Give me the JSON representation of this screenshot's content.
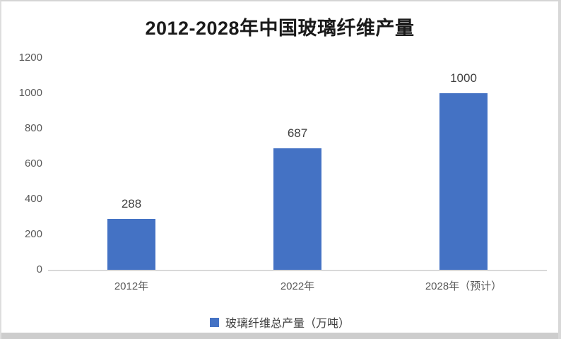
{
  "chart_data": {
    "type": "bar",
    "title": "2012-2028年中国玻璃纤维产量",
    "categories": [
      "2012年",
      "2022年",
      "2028年（预计）"
    ],
    "series": [
      {
        "name": "玻璃纤维总产量（万吨）",
        "values": [
          288,
          687,
          1000
        ]
      }
    ],
    "data_labels": [
      "288",
      "687",
      "1000"
    ],
    "ylabel": "",
    "xlabel": "",
    "ylim": [
      0,
      1200
    ],
    "yticks": [
      0,
      200,
      400,
      600,
      800,
      1000,
      1200
    ],
    "grid": false,
    "legend_position": "bottom",
    "bar_color": "#4472C4"
  },
  "colors": {
    "bar": "#4472C4",
    "title_text": "#1a1a1a",
    "tick_text": "#595959",
    "value_text": "#3f3f3f",
    "axis_line": "#d9d9d9",
    "frame_border": "#d5d5d5",
    "bottom_strip": "#cdcdcd",
    "background": "#ffffff"
  }
}
